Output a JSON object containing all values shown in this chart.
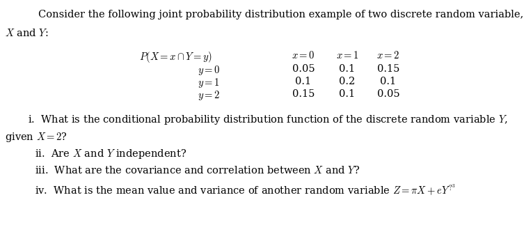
{
  "line1": "Consider the following joint probability distribution example of two discrete random variable,",
  "line2_italic": "X",
  "line2_normal": " and ",
  "line2_italic2": "Y",
  "line2_end": ":",
  "table_header": "$P(X = x \\cap Y = y)$",
  "col_headers": [
    "$x = 0$",
    "$x = 1$",
    "$x = 2$"
  ],
  "row_labels": [
    "$y = 0$",
    "$y = 1$",
    "$y = 2$"
  ],
  "table_data": [
    [
      "0.05",
      "0.1",
      "0.15"
    ],
    [
      "0.1",
      "0.2",
      "0.1"
    ],
    [
      "0.15",
      "0.1",
      "0.05"
    ]
  ],
  "q1": "i.  What is the conditional probability distribution function of the discrete random variable $Y$,",
  "q1b": "given $X = 2$?",
  "q2": "ii.  Are $X$ and $Y$ independent?",
  "q3": "iii.  What are the covariance and correlation between $X$ and $Y$?",
  "q4": "iv.  What is the mean value and variance of another random variable $Z = \\pi X + eY^{?^3}$",
  "bg_color": "#ffffff",
  "text_color": "#000000",
  "fig_width": 7.53,
  "fig_height": 3.33,
  "dpi": 100
}
